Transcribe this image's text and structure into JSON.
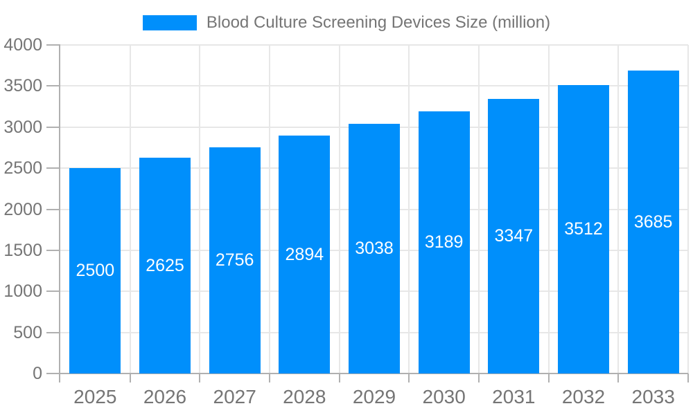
{
  "chart_data": {
    "type": "bar",
    "title": "Blood Culture Screening Devices Size (million)",
    "series": [
      {
        "name": "Blood Culture Screening Devices Size (million)",
        "values": [
          2500,
          2625,
          2756,
          2894,
          3038,
          3189,
          3347,
          3512,
          3685
        ]
      }
    ],
    "categories": [
      "2025",
      "2026",
      "2027",
      "2028",
      "2029",
      "2030",
      "2031",
      "2032",
      "2033"
    ],
    "xlabel": "",
    "ylabel": "",
    "ylim": [
      0,
      4000
    ],
    "ytick_step": 500,
    "ytick_labels": [
      "0",
      "500",
      "1000",
      "1500",
      "2000",
      "2500",
      "3000",
      "3500",
      "4000"
    ],
    "grid": "on",
    "legend_position": "top",
    "bar_labels_shown": true,
    "colors": {
      "bar": "#008FFB",
      "bar_label": "#ffffff",
      "axis_label": "#757575",
      "legend_label": "#757575",
      "gridline": "#e7e7e7",
      "axis_line": "#b0b0b0",
      "background": "#ffffff"
    }
  }
}
